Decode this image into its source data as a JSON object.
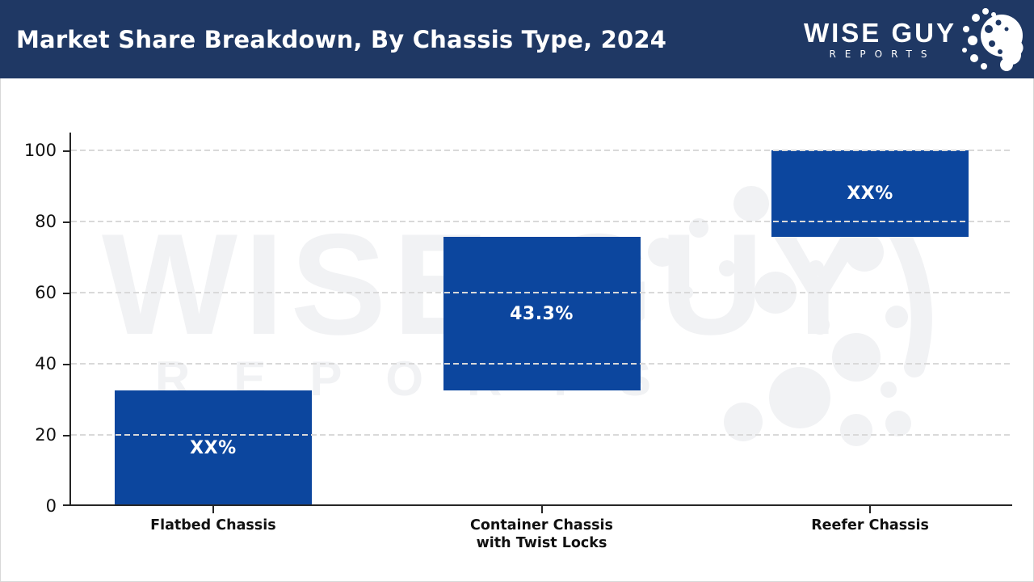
{
  "header": {
    "title": "Market Share Breakdown, By Chassis Type, 2024",
    "background_color": "#1f3864",
    "logo": {
      "line1": "WISE GUY",
      "line2": "REPORTS"
    }
  },
  "watermark": {
    "line1": "WISE GUY",
    "line2": "REPORTS"
  },
  "chart_data": {
    "type": "bar",
    "variant": "floating-waterfall",
    "title": "Market Share Breakdown, By Chassis Type, 2024",
    "categories": [
      "Flatbed Chassis",
      "Container Chassis\nwith Twist Locks",
      "Reefer Chassis"
    ],
    "segments": [
      {
        "category": "Flatbed Chassis",
        "start": 0,
        "end": 32.4,
        "value_label": "XX%"
      },
      {
        "category": "Container Chassis with Twist Locks",
        "start": 32.4,
        "end": 75.7,
        "value_label": "43.3%"
      },
      {
        "category": "Reefer Chassis",
        "start": 75.7,
        "end": 100,
        "value_label": "XX%"
      }
    ],
    "xlabel": "",
    "ylabel": "",
    "ylim": [
      0,
      105
    ],
    "yticks": [
      0,
      20,
      40,
      60,
      80,
      100
    ],
    "grid": {
      "axis": "y",
      "style": "dashed",
      "color": "#d9d9d9",
      "above_bars": true
    },
    "legend": "none",
    "bar_color": "#0c469e",
    "bar_label_color": "#ffffff",
    "axis_color": "#262626",
    "tick_label_color": "#111111"
  }
}
